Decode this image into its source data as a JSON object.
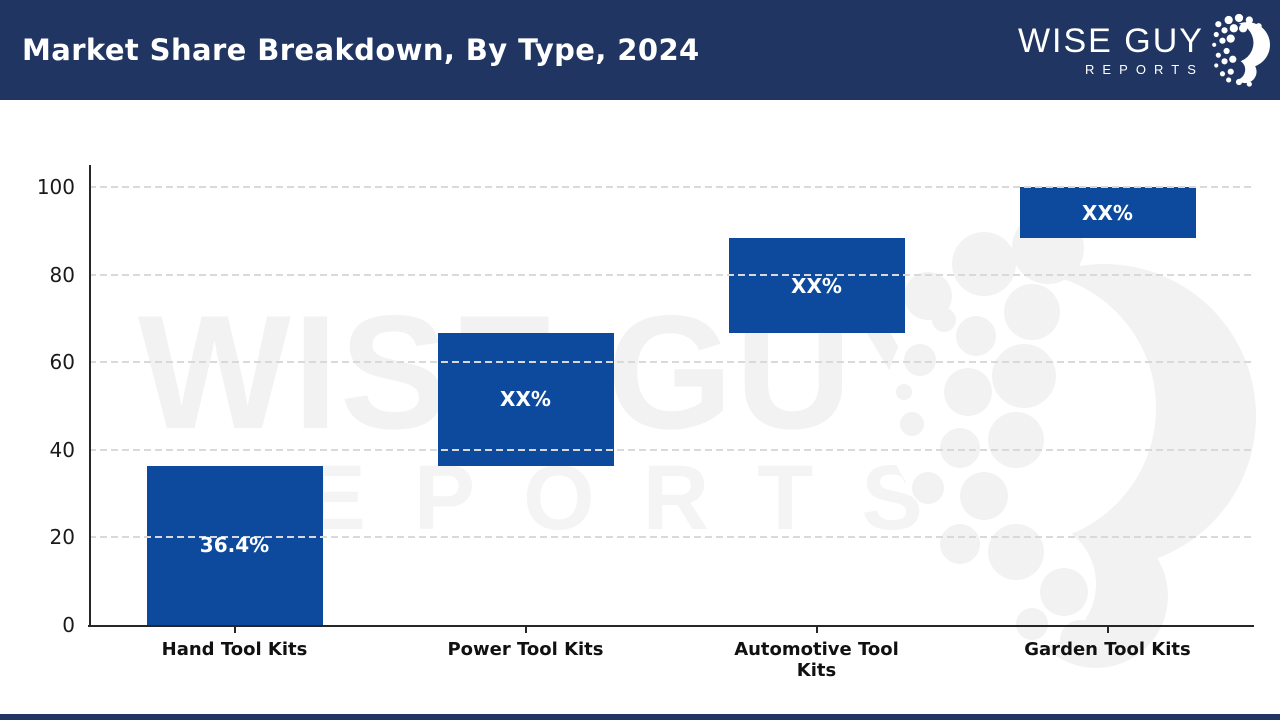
{
  "header": {
    "title": "Market Share Breakdown, By Type, 2024",
    "logo": {
      "brand": "WISE GUY",
      "sub": "REPORTS"
    }
  },
  "watermark": {
    "brand": "WISE GUY",
    "sub": "REPORTS"
  },
  "colors": {
    "header_bg": "#203562",
    "bar": "#0d4a9e",
    "grid": "#d9d9d9",
    "axis": "#262626",
    "watermark": "#f2f2f2"
  },
  "chart_data": {
    "type": "bar",
    "subtype": "waterfall",
    "title": "Market Share Breakdown, By Type, 2024",
    "categories": [
      "Hand Tool Kits",
      "Power Tool Kits",
      "Automotive Tool Kits",
      "Garden Tool Kits"
    ],
    "segments": [
      {
        "category": "Hand Tool Kits",
        "start": 0,
        "end": 36.4,
        "label": "36.4%"
      },
      {
        "category": "Power Tool Kits",
        "start": 36.4,
        "end": 66.6,
        "label": "XX%"
      },
      {
        "category": "Automotive Tool Kits",
        "start": 66.6,
        "end": 88.3,
        "label": "XX%"
      },
      {
        "category": "Garden Tool Kits",
        "start": 88.3,
        "end": 100,
        "label": "XX%"
      }
    ],
    "y_ticks": [
      0,
      20,
      40,
      60,
      80,
      100
    ],
    "ylim": [
      0,
      105
    ],
    "xlabel": "",
    "ylabel": "",
    "grid": true,
    "legend": false
  }
}
